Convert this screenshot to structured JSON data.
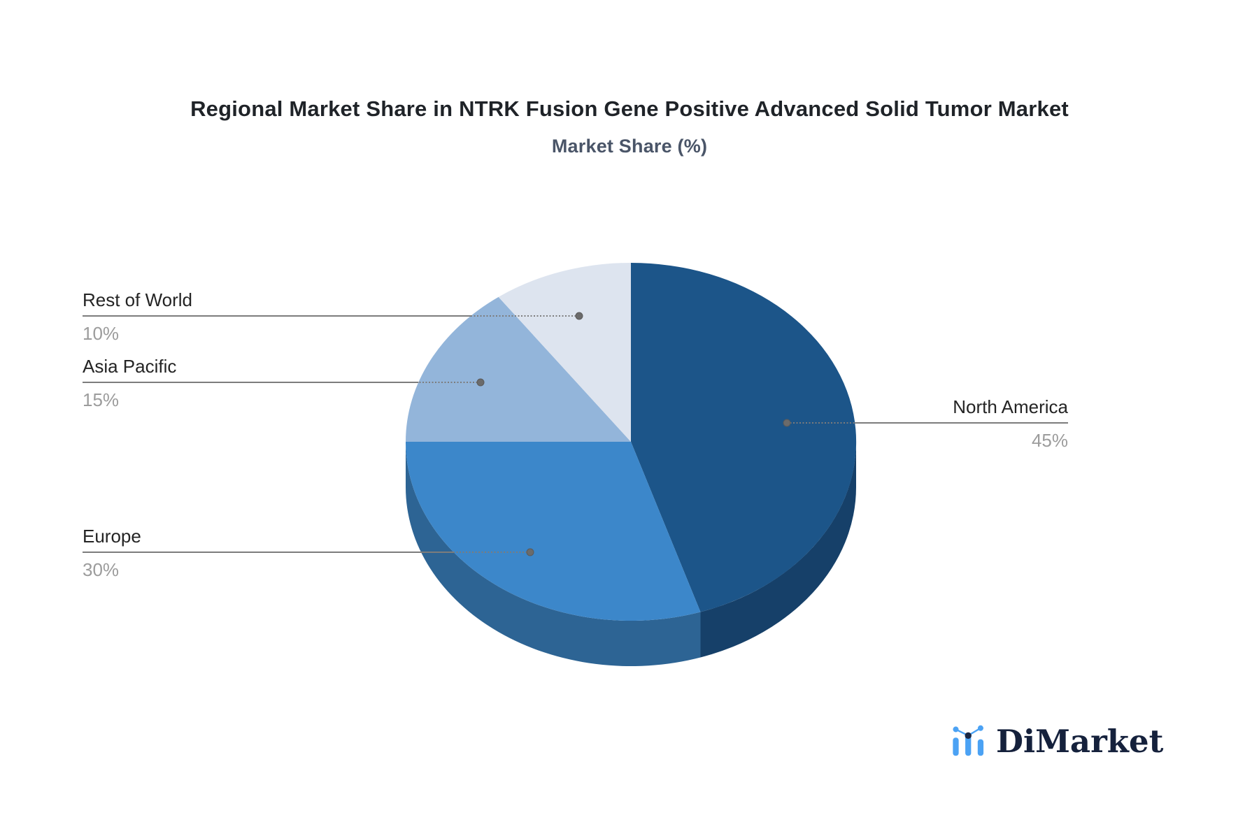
{
  "page": {
    "background": "#FFFFFF"
  },
  "header": {
    "title": "Regional Market Share in NTRK Fusion Gene Positive Advanced Solid Tumor Market",
    "subtitle": "Market Share (%)"
  },
  "chart_data": {
    "type": "pie",
    "style": "3d",
    "title": "Regional Market Share in NTRK Fusion Gene Positive Advanced Solid Tumor Market",
    "subtitle": "Market Share (%)",
    "start_angle_deg": 0,
    "direction": "clockwise",
    "unit": "%",
    "labels": [
      "North America",
      "Europe",
      "Asia Pacific",
      "Rest of World"
    ],
    "values": [
      45,
      30,
      15,
      10
    ],
    "slice_colors": [
      "#1C5589",
      "#3C87CA",
      "#93B5DA",
      "#DDE4EF"
    ],
    "side_colors": [
      "#164069",
      "#2D6494",
      null,
      null
    ],
    "leader_line_color": "#7C7C7C",
    "dot_color": "#6B6B6B",
    "label_text_color": "#242424",
    "value_text_color": "#9C9C9C",
    "legend_position": "none",
    "grid": false
  },
  "footer": {
    "brand": "DiMarket",
    "brand_color": "#15213C",
    "icon": "bar-line-chart-icon",
    "icon_color": "#4BA2F4",
    "icon_dot_color": "#1A2745"
  }
}
